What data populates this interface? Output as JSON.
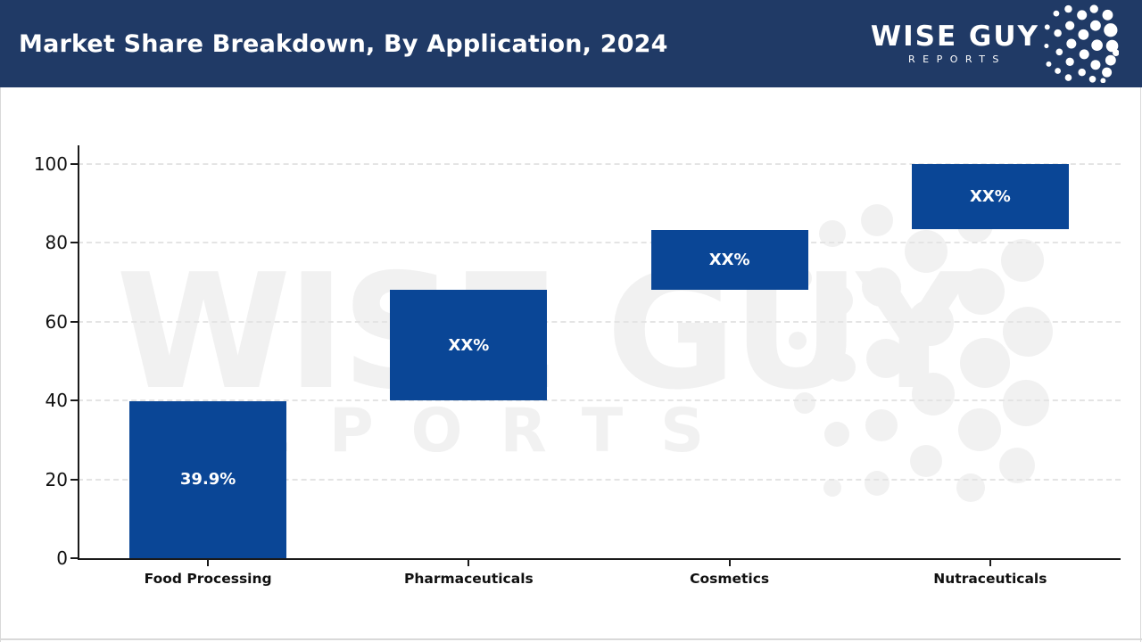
{
  "header": {
    "title": "Market Share Breakdown, By Application, 2024",
    "bg_color": "#203a66",
    "logo": {
      "line1": "WISE GUY",
      "line2": "REPORTS",
      "face_icon": "dotted-head-profile"
    }
  },
  "watermark": {
    "line1": "WISE GUY",
    "line2": "REPORTS",
    "face_icon": "dotted-head-profile",
    "color": "#f1f1f1"
  },
  "chart_data": {
    "type": "bar",
    "variant": "floating-waterfall",
    "title": "Market Share Breakdown, By Application, 2024",
    "xlabel": "",
    "ylabel": "",
    "categories": [
      "Food Processing",
      "Pharmaceuticals",
      "Cosmetics",
      "Nutraceuticals"
    ],
    "series": [
      {
        "name": "Market Share",
        "segments": [
          [
            0,
            39.9
          ],
          [
            40,
            68
          ],
          [
            68.2,
            83.3
          ],
          [
            83.4,
            100
          ]
        ],
        "labels": [
          "39.9%",
          "XX%",
          "XX%",
          "XX%"
        ]
      }
    ],
    "ylim": [
      0,
      100
    ],
    "yticks": [
      0,
      20,
      40,
      60,
      80,
      100
    ],
    "grid": "horizontal-dashed",
    "legend_visible": false,
    "colors": {
      "bar": "#0a4696",
      "bar_label": "#ffffff",
      "gridline": "#e4e4e4",
      "axis": "#1a1a1a",
      "tick_label": "#111111",
      "category_label": "#111111",
      "border": "#d9d9d9"
    }
  }
}
